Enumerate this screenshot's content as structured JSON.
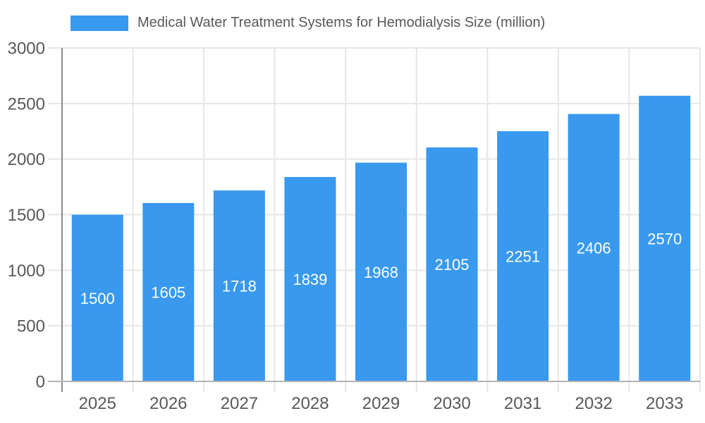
{
  "colors": {
    "bar": "#3899EE",
    "grid": "#E6E6E6",
    "axis_line": "#8A8A8A",
    "zero_line": "#B3B3B3",
    "tick_text": "#58585A",
    "value_label_text": "#FFFFFF",
    "legend_text": "#58585A"
  },
  "legend": {
    "label": "Medical Water Treatment Systems for Hemodialysis Size (million)"
  },
  "chart_data": {
    "type": "bar",
    "title": "Medical Water Treatment Systems for Hemodialysis Size (million)",
    "categories": [
      "2025",
      "2026",
      "2027",
      "2028",
      "2029",
      "2030",
      "2031",
      "2032",
      "2033"
    ],
    "values": [
      1500,
      1605,
      1718,
      1839,
      1968,
      2105,
      2251,
      2406,
      2570
    ],
    "series": [
      {
        "name": "Medical Water Treatment Systems for Hemodialysis Size (million)",
        "values": [
          1500,
          1605,
          1718,
          1839,
          1968,
          2105,
          2251,
          2406,
          2570
        ]
      }
    ],
    "xlabel": "",
    "ylabel": "",
    "ylim": [
      0,
      3000
    ],
    "ytick_step": 500,
    "yticks": [
      "0",
      "500",
      "1000",
      "1500",
      "2000",
      "2500",
      "3000"
    ],
    "grid": true,
    "legend_position": "top-left",
    "value_labels_position": "inside-center"
  }
}
